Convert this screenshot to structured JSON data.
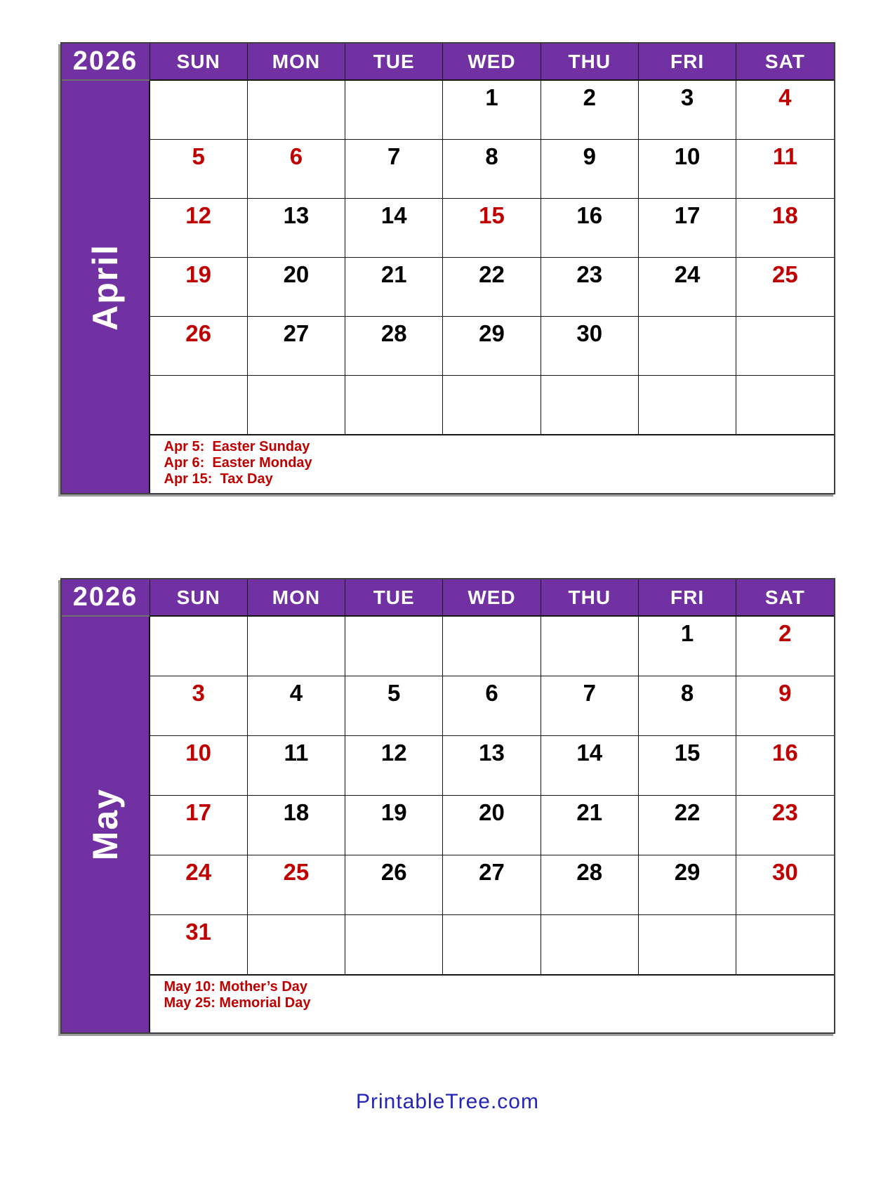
{
  "colors": {
    "purple": "#7131A3",
    "red": "#C00000",
    "grid": "#161616",
    "footer_blue": "#2424B8"
  },
  "footer": {
    "link_label": "PrintableTree.com"
  },
  "months": [
    {
      "id": "april",
      "year_label": "2026",
      "month_name": "April",
      "day_headers": [
        "SUN",
        "MON",
        "TUE",
        "WED",
        "THU",
        "FRI",
        "SAT"
      ],
      "weeks": [
        [
          {
            "t": ""
          },
          {
            "t": ""
          },
          {
            "t": ""
          },
          {
            "t": "1"
          },
          {
            "t": "2"
          },
          {
            "t": "3"
          },
          {
            "t": "4",
            "red": true
          }
        ],
        [
          {
            "t": "5",
            "red": true
          },
          {
            "t": "6",
            "red": true
          },
          {
            "t": "7"
          },
          {
            "t": "8"
          },
          {
            "t": "9"
          },
          {
            "t": "10"
          },
          {
            "t": "11",
            "red": true
          }
        ],
        [
          {
            "t": "12",
            "red": true
          },
          {
            "t": "13"
          },
          {
            "t": "14"
          },
          {
            "t": "15",
            "red": true
          },
          {
            "t": "16"
          },
          {
            "t": "17"
          },
          {
            "t": "18",
            "red": true
          }
        ],
        [
          {
            "t": "19",
            "red": true
          },
          {
            "t": "20"
          },
          {
            "t": "21"
          },
          {
            "t": "22"
          },
          {
            "t": "23"
          },
          {
            "t": "24"
          },
          {
            "t": "25",
            "red": true
          }
        ],
        [
          {
            "t": "26",
            "red": true
          },
          {
            "t": "27"
          },
          {
            "t": "28"
          },
          {
            "t": "29"
          },
          {
            "t": "30"
          },
          {
            "t": ""
          },
          {
            "t": ""
          }
        ],
        [
          {
            "t": ""
          },
          {
            "t": ""
          },
          {
            "t": ""
          },
          {
            "t": ""
          },
          {
            "t": ""
          },
          {
            "t": ""
          },
          {
            "t": ""
          }
        ]
      ],
      "notes": [
        "Apr 5:  Easter Sunday",
        "Apr 6:  Easter Monday",
        "Apr 15:  Tax Day"
      ]
    },
    {
      "id": "may",
      "year_label": "2026",
      "month_name": "May",
      "day_headers": [
        "SUN",
        "MON",
        "TUE",
        "WED",
        "THU",
        "FRI",
        "SAT"
      ],
      "weeks": [
        [
          {
            "t": ""
          },
          {
            "t": ""
          },
          {
            "t": ""
          },
          {
            "t": ""
          },
          {
            "t": ""
          },
          {
            "t": "1"
          },
          {
            "t": "2",
            "red": true
          }
        ],
        [
          {
            "t": "3",
            "red": true
          },
          {
            "t": "4"
          },
          {
            "t": "5"
          },
          {
            "t": "6"
          },
          {
            "t": "7"
          },
          {
            "t": "8"
          },
          {
            "t": "9",
            "red": true
          }
        ],
        [
          {
            "t": "10",
            "red": true
          },
          {
            "t": "11"
          },
          {
            "t": "12"
          },
          {
            "t": "13"
          },
          {
            "t": "14"
          },
          {
            "t": "15"
          },
          {
            "t": "16",
            "red": true
          }
        ],
        [
          {
            "t": "17",
            "red": true
          },
          {
            "t": "18"
          },
          {
            "t": "19"
          },
          {
            "t": "20"
          },
          {
            "t": "21"
          },
          {
            "t": "22"
          },
          {
            "t": "23",
            "red": true
          }
        ],
        [
          {
            "t": "24",
            "red": true
          },
          {
            "t": "25",
            "red": true
          },
          {
            "t": "26"
          },
          {
            "t": "27"
          },
          {
            "t": "28"
          },
          {
            "t": "29"
          },
          {
            "t": "30",
            "red": true
          }
        ],
        [
          {
            "t": "31",
            "red": true
          },
          {
            "t": ""
          },
          {
            "t": ""
          },
          {
            "t": ""
          },
          {
            "t": ""
          },
          {
            "t": ""
          },
          {
            "t": ""
          }
        ]
      ],
      "notes": [
        "May 10: Mother’s Day",
        "May 25: Memorial Day"
      ]
    }
  ]
}
